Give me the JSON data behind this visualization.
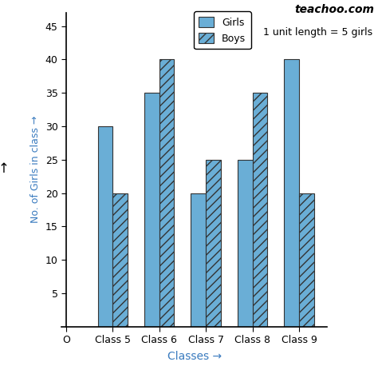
{
  "categories": [
    "Class 5",
    "Class 6",
    "Class 7",
    "Class 8",
    "Class 9"
  ],
  "girls": [
    30,
    35,
    20,
    25,
    40
  ],
  "boys": [
    20,
    40,
    25,
    35,
    20
  ],
  "bar_color_girls": "#6aaed6",
  "bar_color_boys": "#6aaed6",
  "bar_edgecolor": "#333333",
  "title": "teachoo.com",
  "xlabel": "Classes →",
  "ylabel": "No. of Girls in class →",
  "ylim": [
    0,
    47
  ],
  "yticks": [
    5,
    10,
    15,
    20,
    25,
    30,
    35,
    40,
    45
  ],
  "x_origin_label": "O",
  "note": "1 unit length = 5 girls",
  "legend_girls": "Girls",
  "legend_boys": "Boys",
  "bar_width": 0.32,
  "hatch_boys": "///",
  "background_color": "#ffffff",
  "ylabel_color": "#3a7bbf",
  "xlabel_color": "#3a7bbf"
}
